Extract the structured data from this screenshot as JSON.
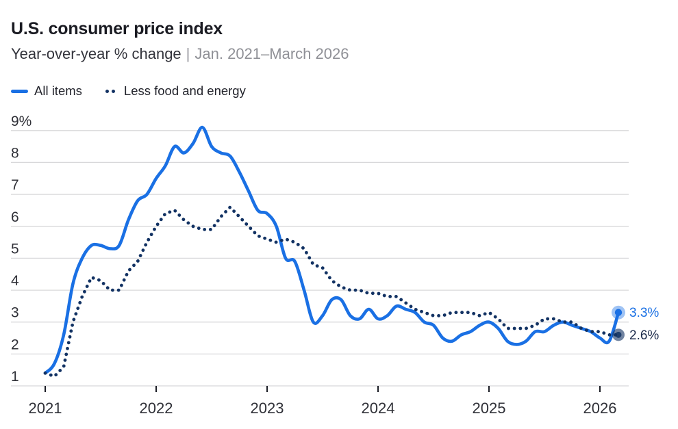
{
  "header": {
    "title": "U.S. consumer price index",
    "subtitle_main": "Year-over-year % change",
    "subtitle_separator": "|",
    "subtitle_range": "Jan. 2021–March 2026"
  },
  "legend": [
    {
      "label": "All items",
      "style": "solid",
      "color": "#1a70e4"
    },
    {
      "label": "Less food and energy",
      "style": "dotted",
      "color": "#123263"
    }
  ],
  "colors": {
    "all_items_blue": "#1a70e4",
    "core_navy": "#123263",
    "grid_gray": "#d8d8da",
    "tick_dark": "#1c1e26",
    "axis_text": "#2f3037",
    "subtitle_gray": "#8f9096",
    "end_label_core": "#1b2a4a"
  },
  "chart_data": {
    "type": "line",
    "title": "U.S. consumer price index",
    "ylabel": "Year-over-year % change",
    "x_start": "2021-01",
    "x_end": "2026-03",
    "x_step": "month",
    "ylim": [
      1,
      9
    ],
    "grid": true,
    "legend_position": "top-left",
    "y_ticks": [
      {
        "value": 9,
        "label": "9%"
      },
      {
        "value": 8,
        "label": "8"
      },
      {
        "value": 7,
        "label": "7"
      },
      {
        "value": 6,
        "label": "6"
      },
      {
        "value": 5,
        "label": "5"
      },
      {
        "value": 4,
        "label": "4"
      },
      {
        "value": 3,
        "label": "3"
      },
      {
        "value": 2,
        "label": "2"
      },
      {
        "value": 1,
        "label": "1"
      }
    ],
    "x_ticks": [
      {
        "month_index": 0,
        "label": "2021"
      },
      {
        "month_index": 12,
        "label": "2022"
      },
      {
        "month_index": 24,
        "label": "2023"
      },
      {
        "month_index": 36,
        "label": "2024"
      },
      {
        "month_index": 48,
        "label": "2025"
      },
      {
        "month_index": 60,
        "label": "2026"
      }
    ],
    "series": [
      {
        "name": "All items",
        "style": "solid",
        "color": "#1a70e4",
        "end_label": "3.3%",
        "values": [
          1.4,
          1.7,
          2.6,
          4.2,
          5.0,
          5.4,
          5.4,
          5.3,
          5.4,
          6.2,
          6.8,
          7.0,
          7.5,
          7.9,
          8.5,
          8.3,
          8.6,
          9.1,
          8.5,
          8.3,
          8.2,
          7.7,
          7.1,
          6.5,
          6.4,
          6.0,
          5.0,
          4.9,
          4.0,
          3.0,
          3.2,
          3.7,
          3.7,
          3.2,
          3.1,
          3.4,
          3.1,
          3.2,
          3.5,
          3.4,
          3.3,
          3.0,
          2.9,
          2.5,
          2.4,
          2.6,
          2.7,
          2.9,
          3.0,
          2.8,
          2.4,
          2.3,
          2.4,
          2.7,
          2.7,
          2.9,
          3.0,
          2.9,
          2.8,
          2.7,
          2.5,
          2.4,
          3.3
        ]
      },
      {
        "name": "Less food and energy",
        "style": "dotted",
        "color": "#123263",
        "end_label": "2.6%",
        "values": [
          1.4,
          1.3,
          1.6,
          3.0,
          3.8,
          4.4,
          4.3,
          4.0,
          4.0,
          4.6,
          4.9,
          5.5,
          6.0,
          6.4,
          6.5,
          6.2,
          6.0,
          5.9,
          5.9,
          6.3,
          6.6,
          6.3,
          6.0,
          5.7,
          5.6,
          5.5,
          5.6,
          5.5,
          5.3,
          4.8,
          4.7,
          4.3,
          4.1,
          4.0,
          4.0,
          3.9,
          3.9,
          3.8,
          3.8,
          3.6,
          3.4,
          3.3,
          3.2,
          3.2,
          3.3,
          3.3,
          3.3,
          3.2,
          3.3,
          3.1,
          2.8,
          2.8,
          2.8,
          2.9,
          3.1,
          3.1,
          3.0,
          3.0,
          2.8,
          2.7,
          2.7,
          2.6,
          2.6
        ]
      }
    ]
  }
}
